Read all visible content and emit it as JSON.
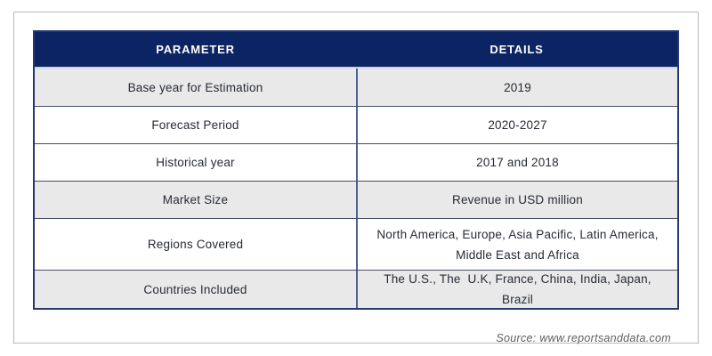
{
  "chart_data": {
    "type": "table",
    "title": "",
    "columns": [
      "PARAMETER",
      "DETAILS"
    ],
    "rows": [
      [
        "Base year for Estimation",
        "2019"
      ],
      [
        "Forecast Period",
        "2020-2027"
      ],
      [
        "Historical year",
        "2017 and 2018"
      ],
      [
        "Market Size",
        "Revenue in USD million"
      ],
      [
        "Regions Covered",
        "North America, Europe, Asia Pacific, Latin America, Middle East and Africa"
      ],
      [
        "Countries Included",
        "The U.S., The  U.K, France, China, India, Japan, Brazil"
      ]
    ],
    "shaded_row_indices": [
      0,
      3,
      5
    ],
    "layout": {
      "header_position": "top",
      "column_split": "50/50",
      "grid": "on"
    }
  },
  "source_note": "Source: www.reportsanddata.com",
  "colors": {
    "header_bg": "#0d2464",
    "header_text": "#ffffff",
    "shaded_row_bg": "#e9e9e9",
    "row_divider": "#465062",
    "column_divider": "#4d6290",
    "table_border": "#243971",
    "frame_border": "#b9b9b9",
    "cell_text": "#272b34",
    "source_text": "#5d5d5d"
  }
}
